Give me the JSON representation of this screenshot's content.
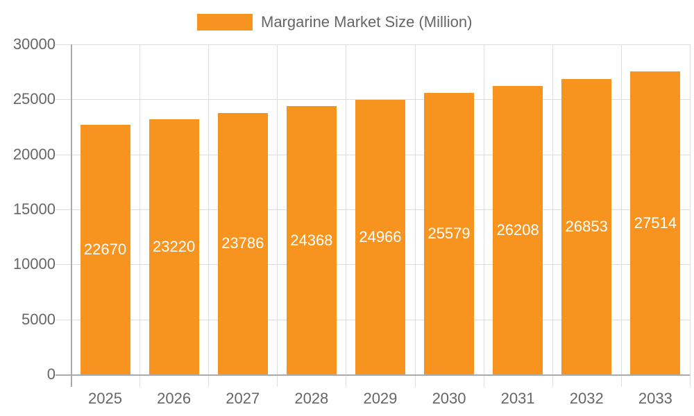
{
  "chart_data": {
    "type": "bar",
    "title": "",
    "legend": {
      "position": "top",
      "entries": [
        {
          "label": "Margarine Market Size (Million)",
          "color": "#f7941f"
        }
      ]
    },
    "categories": [
      "2025",
      "2026",
      "2027",
      "2028",
      "2029",
      "2030",
      "2031",
      "2032",
      "2033"
    ],
    "series": [
      {
        "name": "Margarine Market Size (Million)",
        "color": "#f7941f",
        "values": [
          22670,
          23220,
          23786,
          24368,
          24966,
          25579,
          26208,
          26853,
          27514
        ]
      }
    ],
    "xlabel": "",
    "ylabel": "",
    "ylim": [
      0,
      30000
    ],
    "yticks": [
      "0",
      "5000",
      "10000",
      "15000",
      "20000",
      "25000",
      "30000"
    ],
    "grid": true,
    "data_labels": true
  }
}
